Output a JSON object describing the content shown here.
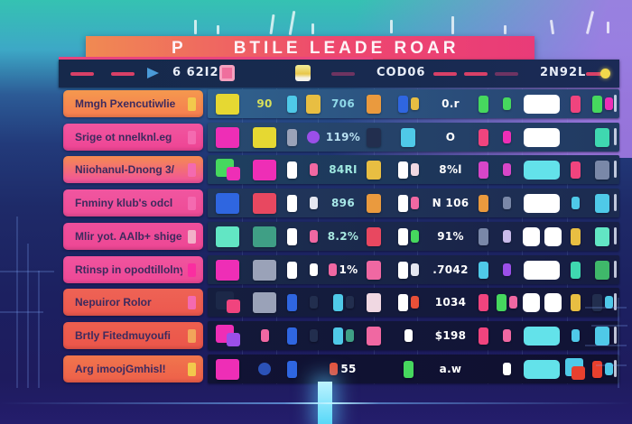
{
  "title": {
    "prefix": "P",
    "main": "BTILE LEADE ROAR"
  },
  "header": {
    "left_code": "6 62I2",
    "mid_code": "COD06",
    "right_code": "2N92L",
    "icons": [
      "sort-arrow",
      "pink-chip",
      "gold-chip",
      "status-dot"
    ]
  },
  "colors": {
    "yellow": "#e6d832",
    "gold": "#e8be42",
    "orange": "#ea9a3e",
    "cyan": "#4fc9e8",
    "cyanl": "#63e2ea",
    "teal": "#3fd8b0",
    "tealdark": "#3f9f85",
    "mint": "#62e6c4",
    "green": "#46d85e",
    "green2": "#3fb86a",
    "blue": "#2f66e0",
    "bluedark": "#2b52b8",
    "pink": "#f0447e",
    "pinklight": "#f068a2",
    "magenta": "#ee2eb6",
    "magenta2": "#d846c8",
    "crimson": "#e84860",
    "red": "#e8402e",
    "redorange": "#e85038",
    "purple": "#9b4fe8",
    "lavender": "#c9bbea",
    "slate": "#7a88a8",
    "gray": "#9aa2b8",
    "white": "#ffffff",
    "whitish": "#e4e6f0",
    "dark": "#222e4e",
    "darkwin": "#1c2848",
    "pinkwhite": "#f0d8e2"
  },
  "rows": [
    {
      "label": "Mmgh Pxencutiwlie",
      "pill": [
        "#f5984e",
        "#f57d50"
      ],
      "pill_icon": "#f2c94c",
      "band": [
        "#30618e",
        "#26406d"
      ],
      "cells": [
        [
          "t",
          "yellow",
          "lg"
        ],
        [
          "x",
          "90",
          "#d8e05a"
        ],
        [
          "t",
          "cyan",
          "sm"
        ],
        [
          "t",
          "gold",
          "md"
        ],
        [
          "x",
          "706",
          "#8fd8e8"
        ],
        [
          "t",
          "orange",
          "md"
        ],
        [
          "p",
          "blue",
          "gold"
        ],
        [
          "x",
          "0.r",
          "#ffffff"
        ],
        [
          "t",
          "green",
          "sm"
        ],
        [
          "t",
          "green",
          "xs"
        ],
        [
          "r",
          "white"
        ],
        [
          "t",
          "pink",
          "sm"
        ],
        [
          "p",
          "green",
          "magenta"
        ]
      ]
    },
    {
      "label": "Srige ot nnelknl.eg",
      "pill": [
        "#f156a0",
        "#ee4494"
      ],
      "pill_icon": "#f46ab0",
      "band": [
        "#28496f",
        "#213a62"
      ],
      "cells": [
        [
          "t",
          "magenta",
          "lg"
        ],
        [
          "t",
          "yellow",
          "lg"
        ],
        [
          "t",
          "gray",
          "sm"
        ],
        [
          "c",
          "purple"
        ],
        [
          "x",
          "119%",
          "#b8dff0"
        ],
        [
          "t",
          "dark",
          "md"
        ],
        [
          "t",
          "cyan",
          "md"
        ],
        [
          "x",
          "O",
          "#ffffff"
        ],
        [
          "t",
          "pink",
          "sm"
        ],
        [
          "t",
          "magenta",
          "xs"
        ],
        [
          "r",
          "white"
        ],
        [
          "n"
        ],
        [
          "t",
          "teal",
          "md"
        ]
      ]
    },
    {
      "label": "Niiohanul-Dnong 3/",
      "pill": [
        "#f58a50",
        "#f0519e"
      ],
      "pill_icon": "#f46ab0",
      "band": [
        "#1e3f60",
        "#1c2f55"
      ],
      "cells": [
        [
          "d",
          "green",
          "magenta"
        ],
        [
          "t",
          "magenta",
          "lg"
        ],
        [
          "t",
          "white",
          "sm"
        ],
        [
          "t",
          "pinklight",
          "xs"
        ],
        [
          "x",
          "84RI",
          "#9fe8e0"
        ],
        [
          "t",
          "gold",
          "md"
        ],
        [
          "p",
          "white",
          "pinkwhite"
        ],
        [
          "x",
          "8%l",
          "#ffffff"
        ],
        [
          "t",
          "magenta2",
          "sm"
        ],
        [
          "t",
          "magenta2",
          "xs"
        ],
        [
          "r",
          "cyanl"
        ],
        [
          "t",
          "pink",
          "sm"
        ],
        [
          "t",
          "slate",
          "md"
        ]
      ]
    },
    {
      "label": "Fnminy klub's odcl",
      "pill": [
        "#f156a0",
        "#ed4b96"
      ],
      "pill_icon": "#f46ab0",
      "band": [
        "#21375c",
        "#1c2b50"
      ],
      "cells": [
        [
          "t",
          "blue",
          "lg"
        ],
        [
          "t",
          "crimson",
          "lg"
        ],
        [
          "t",
          "white",
          "sm"
        ],
        [
          "t",
          "whitish",
          "xs"
        ],
        [
          "x",
          "896",
          "#a8e8e8"
        ],
        [
          "t",
          "orange",
          "md"
        ],
        [
          "p",
          "white",
          "pinklight"
        ],
        [
          "x",
          "N 106",
          "#ffffff"
        ],
        [
          "t",
          "orange",
          "sm"
        ],
        [
          "t",
          "slate",
          "xs"
        ],
        [
          "r",
          "white"
        ],
        [
          "t",
          "cyan",
          "xs"
        ],
        [
          "t",
          "cyan",
          "md"
        ]
      ]
    },
    {
      "label": "Mlir yot. AAlb+ shige",
      "pill": [
        "#ef4f9c",
        "#ed4794"
      ],
      "pill_icon": "#f2b0c8",
      "band": [
        "#1c2f50",
        "#181f46"
      ],
      "cells": [
        [
          "t",
          "mint",
          "lg"
        ],
        [
          "t",
          "tealdark",
          "lg"
        ],
        [
          "t",
          "white",
          "sm"
        ],
        [
          "t",
          "pinklight",
          "xs"
        ],
        [
          "x",
          "8.2%",
          "#a8e8e0"
        ],
        [
          "t",
          "crimson",
          "md"
        ],
        [
          "p",
          "white",
          "green"
        ],
        [
          "x",
          "91%",
          "#ffffff"
        ],
        [
          "t",
          "slate",
          "sm"
        ],
        [
          "t",
          "lavender",
          "xs"
        ],
        [
          "r2",
          "white"
        ],
        [
          "t",
          "gold",
          "sm"
        ],
        [
          "t",
          "mint",
          "md"
        ]
      ]
    },
    {
      "label": "Rtinsp in opodtillolny",
      "pill": [
        "#f0549e",
        "#ee4896"
      ],
      "pill_icon": "#fa2ea0",
      "band": [
        "#1a2a4a",
        "#161c42"
      ],
      "cells": [
        [
          "t",
          "magenta",
          "lg"
        ],
        [
          "t",
          "gray",
          "lg"
        ],
        [
          "t",
          "white",
          "sm"
        ],
        [
          "t",
          "white",
          "xs"
        ],
        [
          "s",
          "pinklight",
          "1%"
        ],
        [
          "t",
          "pinklight",
          "md"
        ],
        [
          "p",
          "white",
          "whitish"
        ],
        [
          "x",
          ".7042",
          "#ffffff"
        ],
        [
          "t",
          "cyan",
          "sm"
        ],
        [
          "t",
          "purple",
          "xs"
        ],
        [
          "r",
          "white"
        ],
        [
          "t",
          "teal",
          "sm"
        ],
        [
          "t",
          "green2",
          "md"
        ]
      ]
    },
    {
      "label": "Nepuiror Rolor",
      "pill": [
        "#ee6355",
        "#ec584e"
      ],
      "pill_icon": "#f46ab0",
      "band": [
        "#151e3e",
        "#13163a"
      ],
      "cells": [
        [
          "d",
          "darkwin",
          "pink"
        ],
        [
          "t",
          "gray",
          "lg"
        ],
        [
          "t",
          "blue",
          "sm"
        ],
        [
          "t",
          "dark",
          "xs"
        ],
        [
          "p",
          "cyan",
          "dark"
        ],
        [
          "t",
          "pinkwhite",
          "md"
        ],
        [
          "p",
          "white",
          "redorange"
        ],
        [
          "x",
          "1034",
          "#ffffff"
        ],
        [
          "t",
          "pink",
          "sm"
        ],
        [
          "p",
          "green",
          "pinklight"
        ],
        [
          "r2",
          "white"
        ],
        [
          "t",
          "gold",
          "sm"
        ],
        [
          "p",
          "dark",
          "cyan"
        ]
      ]
    },
    {
      "label": "Brtly Fitedmuyoufi",
      "pill": [
        "#ed5f4f",
        "#eb554a"
      ],
      "pill_icon": "#f2a45a",
      "band": [
        "#131939",
        "#111336"
      ],
      "cells": [
        [
          "d",
          "magenta",
          "purple"
        ],
        [
          "t",
          "pinklight",
          "xs"
        ],
        [
          "t",
          "blue",
          "sm"
        ],
        [
          "t",
          "dark",
          "xs"
        ],
        [
          "p",
          "cyan",
          "tealdark"
        ],
        [
          "t",
          "pinklight",
          "md"
        ],
        [
          "t",
          "white",
          "xs"
        ],
        [
          "x",
          "$198",
          "#ffffff"
        ],
        [
          "t",
          "pink",
          "sm"
        ],
        [
          "t",
          "pinklight",
          "xs"
        ],
        [
          "r",
          "cyanl"
        ],
        [
          "t",
          "cyan",
          "xs"
        ],
        [
          "t",
          "cyan",
          "md"
        ]
      ]
    },
    {
      "label": "Arg imoojGmhisl!",
      "pill": [
        "#f0764c",
        "#ee5f4a"
      ],
      "pill_icon": "#f2c94c",
      "band": [
        "#111334",
        "#0f1030"
      ],
      "cells": [
        [
          "t",
          "magenta",
          "lg"
        ],
        [
          "c",
          "bluedark"
        ],
        [
          "t",
          "blue",
          "sm"
        ],
        [
          "n"
        ],
        [
          "s",
          "redorange",
          "55"
        ],
        [
          "n"
        ],
        [
          "t",
          "green",
          "sm"
        ],
        [
          "x",
          "a.w",
          "#ffffff"
        ],
        [
          "n"
        ],
        [
          "t",
          "white",
          "xs"
        ],
        [
          "r",
          "cyanl"
        ],
        [
          "d",
          "cyan",
          "red"
        ],
        [
          "p",
          "red",
          "cyan"
        ]
      ]
    }
  ]
}
